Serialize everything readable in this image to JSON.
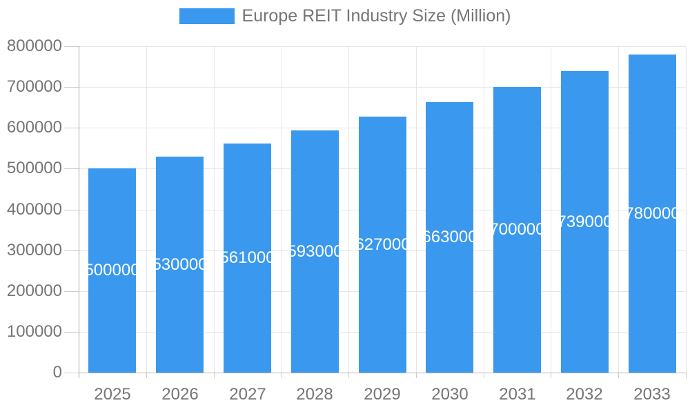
{
  "chart_data": {
    "type": "bar",
    "title": "Europe REIT Industry Size (Million)",
    "legend": {
      "position": "top",
      "label": "Europe REIT Industry Size (Million)"
    },
    "categories": [
      "2025",
      "2026",
      "2027",
      "2028",
      "2029",
      "2030",
      "2031",
      "2032",
      "2033"
    ],
    "series": [
      {
        "name": "Europe REIT Industry Size (Million)",
        "values": [
          500000,
          530000,
          561000,
          593000,
          627000,
          663000,
          700000,
          739000,
          780000
        ]
      }
    ],
    "bar_value_labels": [
      "500000",
      "530000",
      "561000",
      "593000",
      "627000",
      "663000",
      "700000",
      "739000",
      "780000"
    ],
    "xlabel": "",
    "ylabel": "",
    "ylim": [
      0,
      800000
    ],
    "ytick_step": 100000,
    "yticks": [
      0,
      100000,
      200000,
      300000,
      400000,
      500000,
      600000,
      700000,
      800000
    ],
    "grid": true,
    "colors": {
      "bar": "#3a99ee",
      "axis_text": "#757575",
      "bar_label_text": "#ffffff",
      "gridline": "#e6e6e6",
      "tick": "#cccccc",
      "y_axis_line": "#a6a6a6",
      "x_axis_line": "#b5b5b5",
      "background": "#ffffff"
    }
  }
}
